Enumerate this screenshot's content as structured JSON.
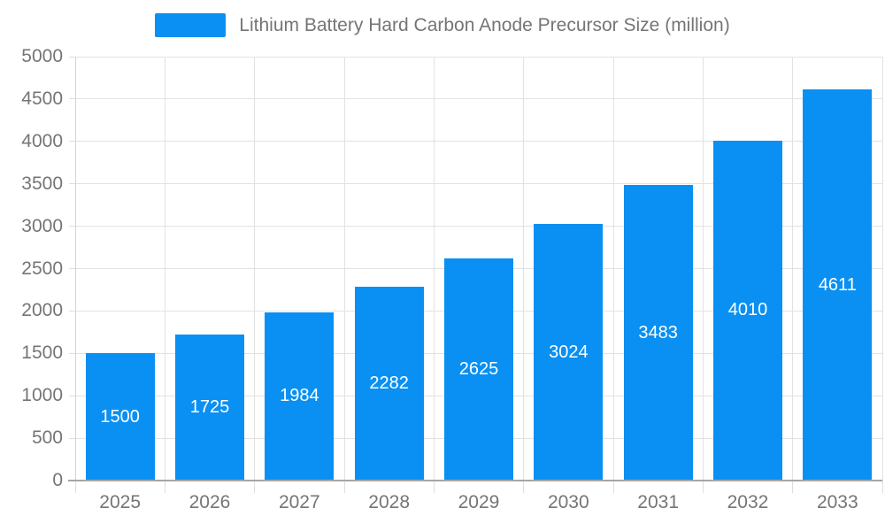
{
  "legend": {
    "label": "Lithium Battery Hard Carbon Anode Precursor Size (million)"
  },
  "chart_data": {
    "type": "bar",
    "title": "Lithium Battery Hard Carbon Anode Precursor Size (million)",
    "categories": [
      "2025",
      "2026",
      "2027",
      "2028",
      "2029",
      "2030",
      "2031",
      "2032",
      "2033"
    ],
    "values": [
      1500,
      1725,
      1984,
      2282,
      2625,
      3024,
      3483,
      4010,
      4611
    ],
    "xlabel": "",
    "ylabel": "",
    "ylim": [
      0,
      5000
    ],
    "ytick_step": 500,
    "grid": true,
    "legend_position": "top-center",
    "colors": {
      "bar": "#0990F2",
      "bar_label": "#ffffff",
      "axis_text": "#757575",
      "gridline": "#e2e2e2",
      "y_axis_line": "#d4d4d4",
      "tick": "#dddddd",
      "x_axis_line": "#a6a6a6",
      "background": "#ffffff"
    }
  }
}
